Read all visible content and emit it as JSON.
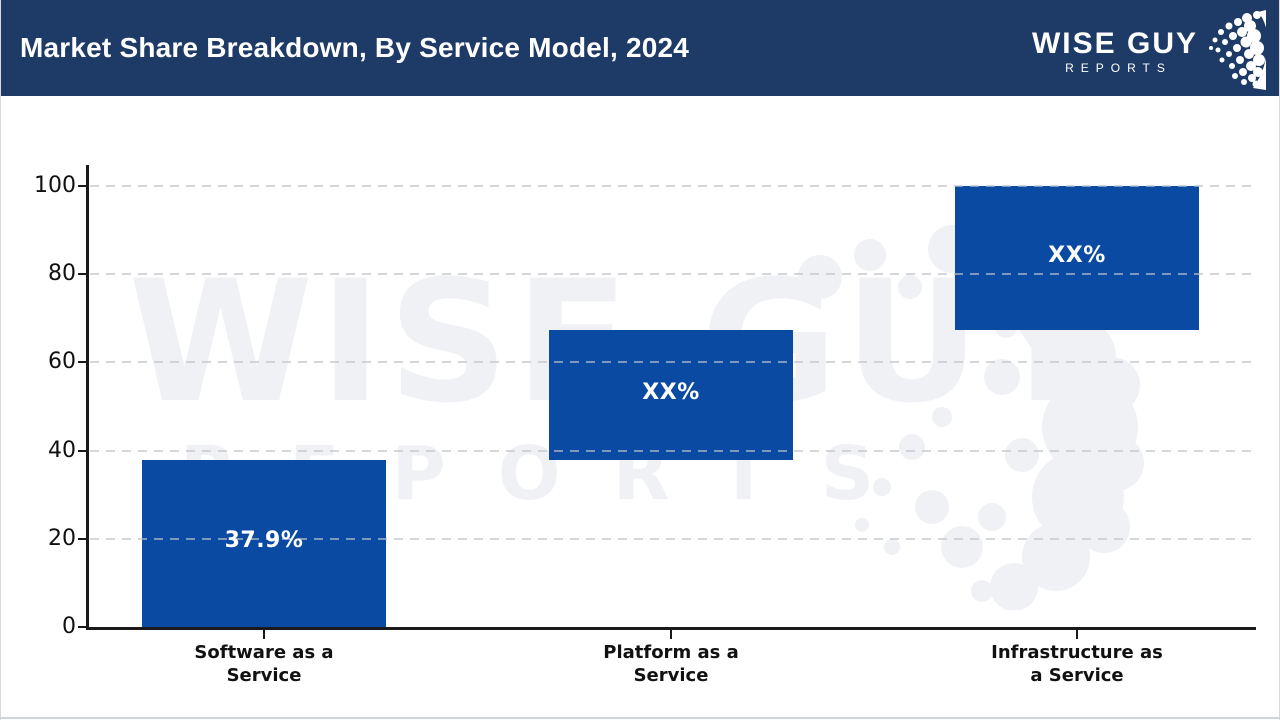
{
  "header": {
    "title": "Market Share Breakdown, By Service Model, 2024",
    "logo_line1": "WISE GUY",
    "logo_line2": "REPORTS"
  },
  "watermark": {
    "line1": "WISE GUY",
    "line2": "REPORTS"
  },
  "chart_data": {
    "type": "bar",
    "subtype": "floating-segment-breakdown",
    "title": "Market Share Breakdown, By Service Model, 2024",
    "categories": [
      "Software as a Service",
      "Platform as a Service",
      "Infrastructure as a Service"
    ],
    "category_lines": [
      [
        "Software as a",
        "Service"
      ],
      [
        "Platform as a",
        "Service"
      ],
      [
        "Infrastructure as",
        "a Service"
      ]
    ],
    "segments": [
      {
        "category": "Software as a Service",
        "label": "37.9%",
        "start": 0,
        "end": 37.9
      },
      {
        "category": "Platform as a Service",
        "label": "XX%",
        "start": 37.9,
        "end": 67.3
      },
      {
        "category": "Infrastructure as a Service",
        "label": "XX%",
        "start": 67.3,
        "end": 100
      }
    ],
    "ylim": [
      0,
      100
    ],
    "yticks": [
      0,
      20,
      40,
      60,
      80,
      100
    ],
    "xlabel": "",
    "ylabel": "",
    "grid": "horizontal-dashed",
    "legend": "none"
  },
  "colors": {
    "header_bg": "#1e3a66",
    "bar_fill": "#0b4aa2",
    "bar_label": "#ffffff",
    "grid_line": "#d9dbe0",
    "axis": "#1a1a1a",
    "watermark": "#f0f1f4"
  }
}
